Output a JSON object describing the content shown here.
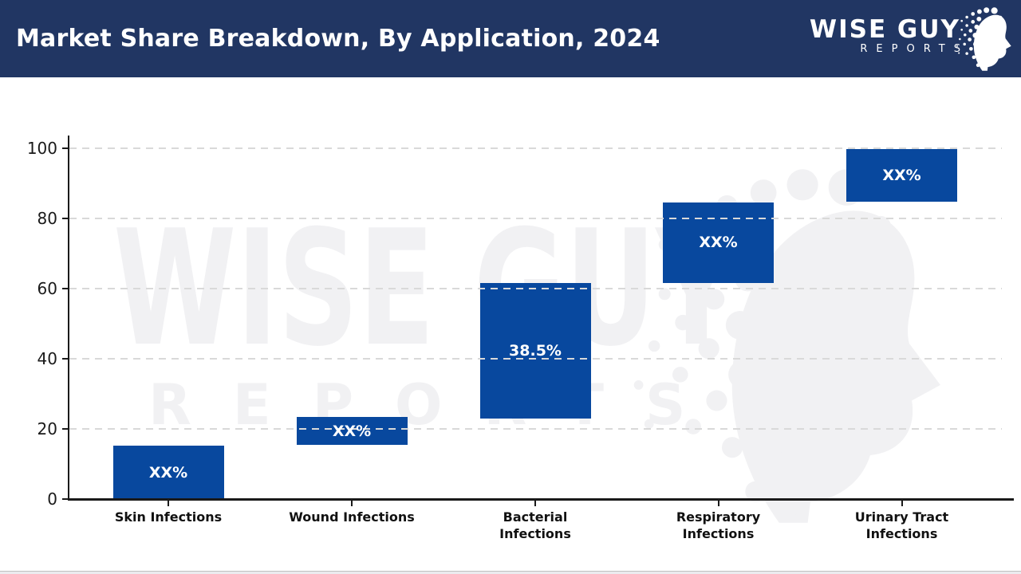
{
  "header": {
    "title": "Market Share Breakdown, By Application, 2024",
    "brand": {
      "name": "WISE GUY",
      "sub": "REPORTS"
    }
  },
  "watermark": {
    "line1": "WISE GUY",
    "line2": "REPORTS"
  },
  "chart_data": {
    "type": "bar",
    "variant": "floating-segment-waterfall",
    "title": "Market Share Breakdown, By Application, 2024",
    "categories": [
      "Skin Infections",
      "Wound Infections",
      "Bacterial\nInfections",
      "Respiratory\nInfections",
      "Urinary Tract\nInfections"
    ],
    "series": [
      {
        "name": "Market share (%)",
        "segments": [
          {
            "category": "Skin Infections",
            "start": 0,
            "end": 15.2,
            "label": "XX%"
          },
          {
            "category": "Wound Infections",
            "start": 15.4,
            "end": 23.4,
            "label": "XX%"
          },
          {
            "category": "Bacterial Infections",
            "start": 23.0,
            "end": 61.5,
            "label": "38.5%",
            "value": 38.5
          },
          {
            "category": "Respiratory Infections",
            "start": 61.6,
            "end": 84.6,
            "label": "XX%"
          },
          {
            "category": "Urinary Tract Infections",
            "start": 84.8,
            "end": 99.8,
            "label": "XX%"
          }
        ]
      }
    ],
    "xlabel": "",
    "ylabel": "",
    "yticks": [
      0,
      20,
      40,
      60,
      80,
      100
    ],
    "ylim": [
      0,
      103.6
    ],
    "grid": {
      "axis": "y",
      "style": "dashed",
      "over_bars": true
    },
    "legend": "none",
    "bar_color": "#08489e",
    "bar_label_color": "#ffffff"
  },
  "colors": {
    "header_bg": "#213663",
    "bar": "#08489e",
    "axis": "#1a1a1a",
    "grid": "#d9d9d9",
    "watermark": "#f1f1f3",
    "footer_line": "#c0c0c0",
    "footer_fill": "#ebebee"
  }
}
